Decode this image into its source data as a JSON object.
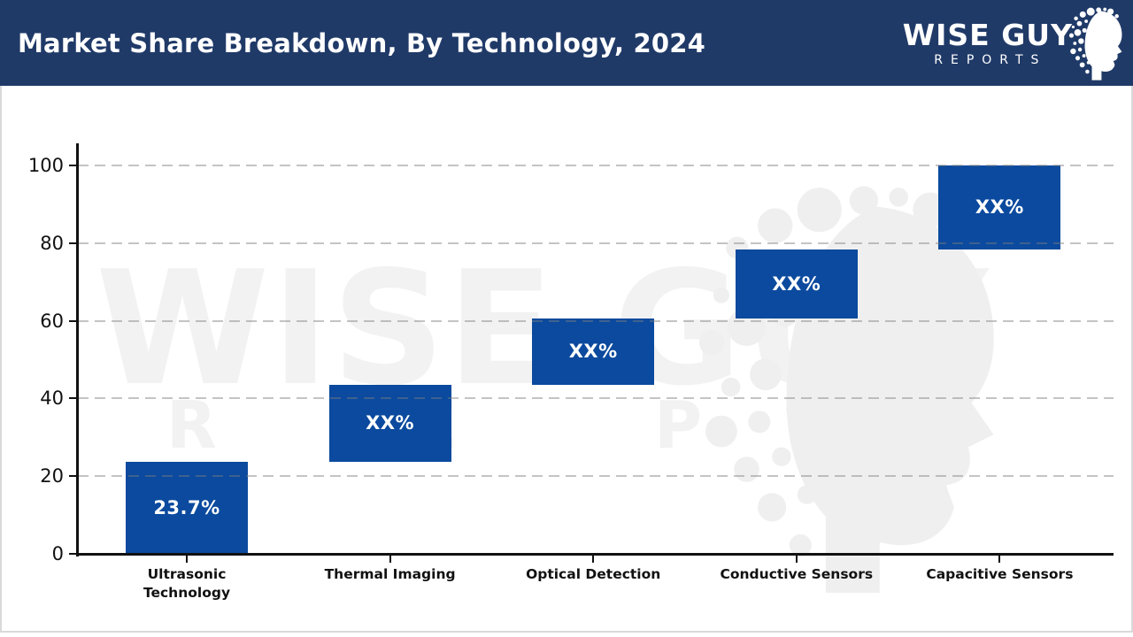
{
  "header": {
    "title": "Market Share Breakdown, By Technology, 2024",
    "logo": {
      "line1": "WISE GUY",
      "line2": "REPORTS"
    }
  },
  "watermark": {
    "line1": "WISE GUY",
    "line2": "R E P O R T S"
  },
  "colors": {
    "header_bg": "#203a68",
    "bar": "#0b4a9e",
    "bar_label": "#ffffff",
    "axis": "#111111",
    "grid": "#c6c6c6",
    "watermark": "#f2f2f2"
  },
  "chart_data": {
    "type": "bar",
    "subtype": "waterfall",
    "title": "Market Share Breakdown, By Technology, 2024",
    "xlabel": "",
    "ylabel": "",
    "ylim": [
      0,
      106
    ],
    "grid": "horizontal dashed, drawn over bars",
    "legend": "none",
    "y_ticks": [
      0,
      20,
      40,
      60,
      80,
      100
    ],
    "categories": [
      "Ultrasonic\nTechnology",
      "Thermal Imaging",
      "Optical Detection",
      "Conductive Sensors",
      "Capacitive Sensors"
    ],
    "segments": [
      {
        "category": "Ultrasonic Technology",
        "start": 0,
        "end": 23.7,
        "label": "23.7%"
      },
      {
        "category": "Thermal Imaging",
        "start": 23.7,
        "end": 43.6,
        "label": "XX%"
      },
      {
        "category": "Optical Detection",
        "start": 43.6,
        "end": 60.6,
        "label": "XX%"
      },
      {
        "category": "Conductive Sensors",
        "start": 60.6,
        "end": 78.4,
        "label": "XX%"
      },
      {
        "category": "Capacitive Sensors",
        "start": 78.4,
        "end": 100,
        "label": "XX%"
      }
    ]
  }
}
